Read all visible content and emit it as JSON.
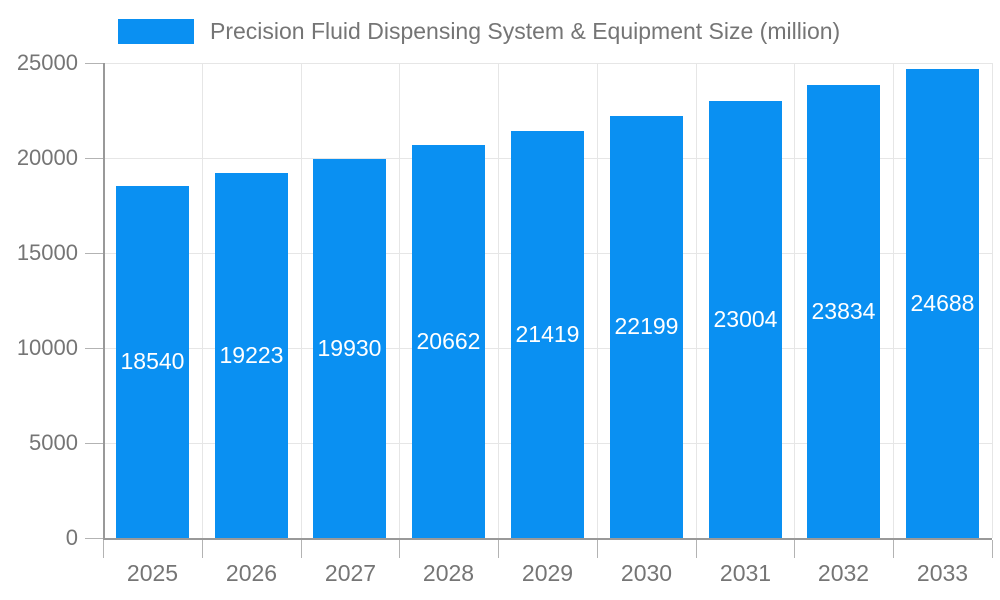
{
  "chart_data": {
    "type": "bar",
    "title": "Precision Fluid Dispensing System & Equipment Size (million)",
    "categories": [
      "2025",
      "2026",
      "2027",
      "2028",
      "2029",
      "2030",
      "2031",
      "2032",
      "2033"
    ],
    "values": [
      18540,
      19223,
      19930,
      20662,
      21419,
      22199,
      23004,
      23834,
      24688
    ],
    "xlabel": "",
    "ylabel": "",
    "ylim": [
      0,
      25000
    ],
    "ytick_step": 5000,
    "ytick_labels": [
      "0",
      "5000",
      "10000",
      "15000",
      "20000",
      "25000"
    ],
    "legend_position": "top-left",
    "grid": true,
    "bar_labels_inside": true,
    "colors": {
      "bar": "#0a90f2",
      "bar_label": "#ffffff",
      "axis_text": "#757575",
      "title_text": "#757575",
      "axis_line": "#999999",
      "grid_line": "#e6e6e6",
      "tick_line": "#b3b3b3",
      "background": "#ffffff"
    }
  }
}
